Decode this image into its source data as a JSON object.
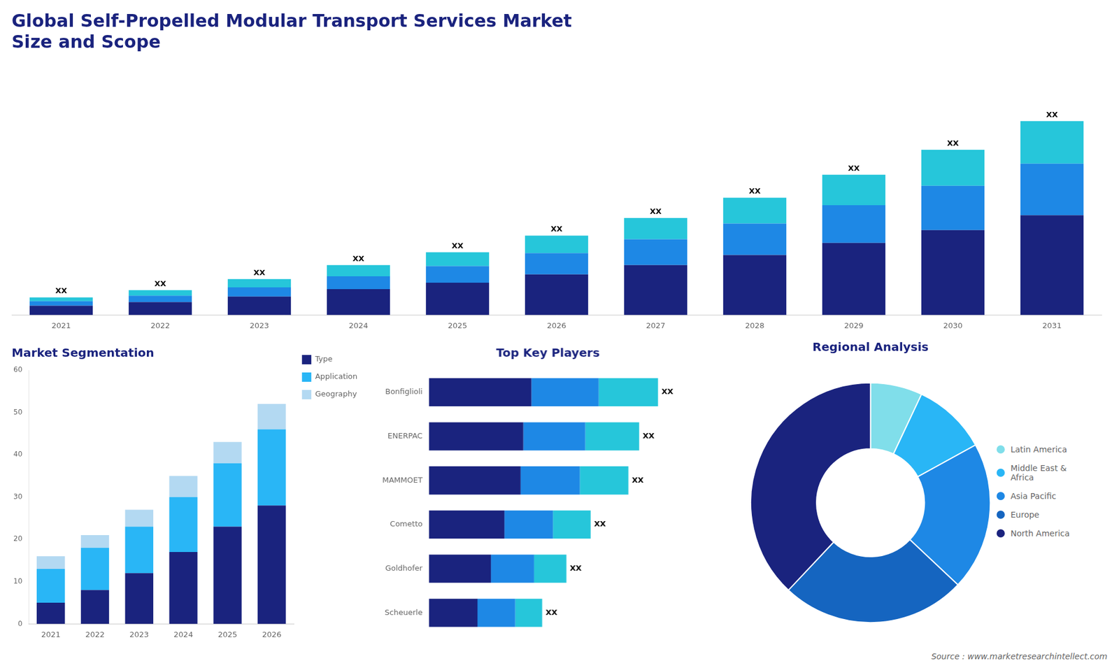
{
  "chart_data": [
    {
      "type": "bar",
      "title": "Global Self-Propelled Modular Transport Services Market\nSize and Scope",
      "stacked": true,
      "categories": [
        "2021",
        "2022",
        "2023",
        "2024",
        "2025",
        "2026",
        "2027",
        "2028",
        "2029",
        "2030",
        "2031"
      ],
      "series": [
        {
          "color": "#1a237e",
          "values": [
            1.0,
            1.4,
            2.0,
            2.8,
            3.5,
            4.4,
            5.4,
            6.5,
            7.8,
            9.2,
            10.8
          ]
        },
        {
          "color": "#1e88e5",
          "values": [
            0.5,
            0.7,
            1.0,
            1.4,
            1.8,
            2.3,
            2.8,
            3.4,
            4.1,
            4.8,
            5.6
          ]
        },
        {
          "color": "#26c6da",
          "values": [
            0.4,
            0.6,
            0.9,
            1.2,
            1.5,
            1.9,
            2.3,
            2.8,
            3.3,
            3.9,
            4.6
          ]
        }
      ],
      "annotations": [
        "XX",
        "XX",
        "XX",
        "XX",
        "XX",
        "XX",
        "XX",
        "XX",
        "XX",
        "XX",
        "XX"
      ],
      "ylim": [
        0,
        27.3
      ],
      "tick_labels": "x",
      "grid": false
    },
    {
      "type": "bar",
      "title": "Market Segmentation",
      "stacked": true,
      "categories": [
        "2021",
        "2022",
        "2023",
        "2024",
        "2025",
        "2026"
      ],
      "series": [
        {
          "name": "Type",
          "color": "#1a237e",
          "values": [
            5,
            8,
            12,
            17,
            23,
            28
          ]
        },
        {
          "name": "Application",
          "color": "#29b6f6",
          "values": [
            8,
            10,
            11,
            13,
            15,
            18
          ]
        },
        {
          "name": "Geography",
          "color": "#b3d9f2",
          "values": [
            3,
            3,
            4,
            5,
            5,
            6
          ]
        }
      ],
      "ylim": [
        0,
        60
      ],
      "yticks": [
        0,
        10,
        20,
        30,
        40,
        50,
        60
      ],
      "legend": "right",
      "grid": false
    },
    {
      "type": "bar",
      "orientation": "horizontal",
      "title": "Top Key Players",
      "stacked": true,
      "categories": [
        "Bonfiglioli",
        "ENERPAC",
        "MAMMOET",
        "Cometto",
        "Goldhofer",
        "Scheuerle"
      ],
      "series": [
        {
          "color": "#1a237e",
          "values": [
            0.38,
            0.35,
            0.34,
            0.28,
            0.23,
            0.18
          ]
        },
        {
          "color": "#1e88e5",
          "values": [
            0.25,
            0.23,
            0.22,
            0.18,
            0.16,
            0.14
          ]
        },
        {
          "color": "#26c6da",
          "values": [
            0.22,
            0.2,
            0.18,
            0.14,
            0.12,
            0.1
          ]
        }
      ],
      "annotations": [
        "XX",
        "XX",
        "XX",
        "XX",
        "XX",
        "XX"
      ],
      "xlim": [
        0,
        1.0625
      ],
      "tick_labels": "y",
      "grid": false
    },
    {
      "type": "doughnut",
      "title": "Regional Analysis",
      "categories": [
        "Latin America",
        "Middle East &\nAfrica",
        "Asia Pacific",
        "Europe",
        "North America"
      ],
      "values": [
        7,
        10,
        20,
        25,
        38
      ],
      "colors": [
        "#80deea",
        "#29b6f6",
        "#1e88e5",
        "#1565c0",
        "#1a237e"
      ],
      "legend": "right",
      "annotations": [
        "Source : www.marketresearchintellect.com"
      ]
    }
  ]
}
